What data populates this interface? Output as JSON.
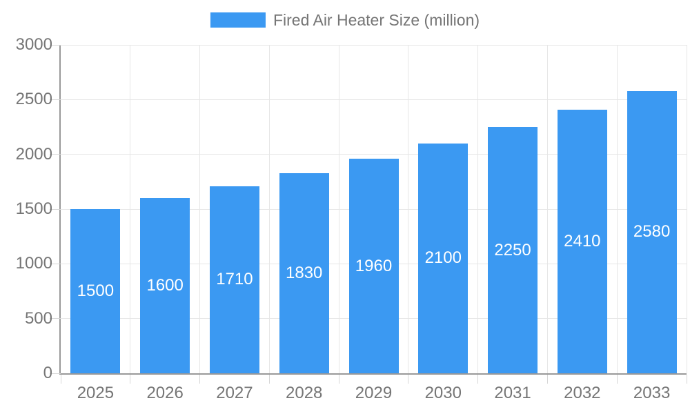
{
  "chart_data": {
    "type": "bar",
    "title": "Fired Air Heater Size (million)",
    "categories": [
      "2025",
      "2026",
      "2027",
      "2028",
      "2029",
      "2030",
      "2031",
      "2032",
      "2033"
    ],
    "values": [
      1500,
      1600,
      1710,
      1830,
      1960,
      2100,
      2250,
      2410,
      2580
    ],
    "value_labels": [
      "1500",
      "1600",
      "1710",
      "1830",
      "1960",
      "2100",
      "2250",
      "2410",
      "2580"
    ],
    "xlabel": "",
    "ylabel": "",
    "ylim": [
      0,
      3000
    ],
    "ytick_step": 500,
    "ytick_labels": [
      "0",
      "500",
      "1000",
      "1500",
      "2000",
      "2500",
      "3000"
    ],
    "grid": true,
    "legend_position": "top",
    "colors": {
      "bar": "#3B99F2",
      "value_label": "#FFFFFF",
      "axis": "#999999",
      "grid": "#E6E6E6",
      "tick": "#D6D6D6",
      "text": "#757575",
      "background": "#FFFFFF"
    }
  }
}
